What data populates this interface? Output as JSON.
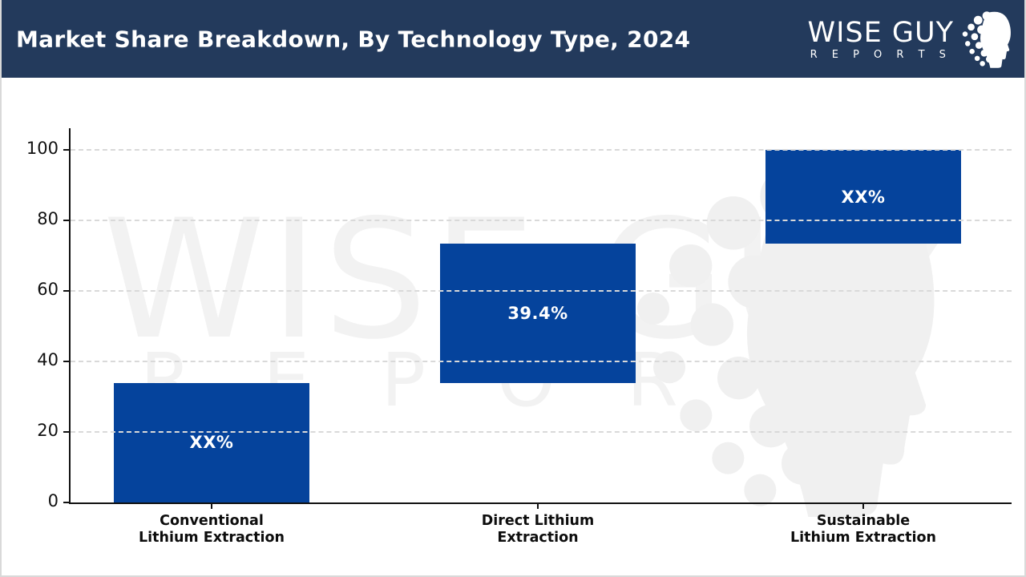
{
  "header": {
    "title": "Market Share Breakdown, By Technology Type, 2024",
    "logo": {
      "line1": "WISE GUY",
      "line2": "R E P O R T S"
    }
  },
  "watermark": {
    "line1": "WISE GUY",
    "line2": "R E P O R T S"
  },
  "colors": {
    "header_bg": "#233a5c",
    "bar": "#05439c",
    "grid": "#d9d9d9",
    "axis": "#111111",
    "value_label": "#ffffff",
    "watermark": "#f2f2f2",
    "page_border": "#d9d9d9"
  },
  "chart_data": {
    "type": "bar",
    "subtype": "stacked-waterfall",
    "title": "Market Share Breakdown, By Technology Type, 2024",
    "categories": [
      "Conventional Lithium Extraction",
      "Direct Lithium Extraction",
      "Sustainable Lithium Extraction"
    ],
    "category_label_lines": [
      [
        "Conventional",
        "Lithium Extraction"
      ],
      [
        "Direct Lithium",
        "Extraction"
      ],
      [
        "Sustainable",
        "Lithium Extraction"
      ]
    ],
    "series": [
      {
        "name": "Conventional Lithium Extraction",
        "start": 0,
        "end": 33.9,
        "value": 33.9,
        "value_label": "XX%"
      },
      {
        "name": "Direct Lithium Extraction",
        "start": 33.9,
        "end": 73.3,
        "value": 39.4,
        "value_label": "39.4%"
      },
      {
        "name": "Sustainable Lithium Extraction",
        "start": 73.3,
        "end": 100,
        "value": 26.7,
        "value_label": "XX%"
      }
    ],
    "ylim": [
      0,
      100
    ],
    "yticks": [
      0,
      20,
      40,
      60,
      80,
      100
    ],
    "xlabel": "",
    "ylabel": "",
    "grid": "horizontal-dashed",
    "gridlines_above_bars": true,
    "legend": "none"
  }
}
